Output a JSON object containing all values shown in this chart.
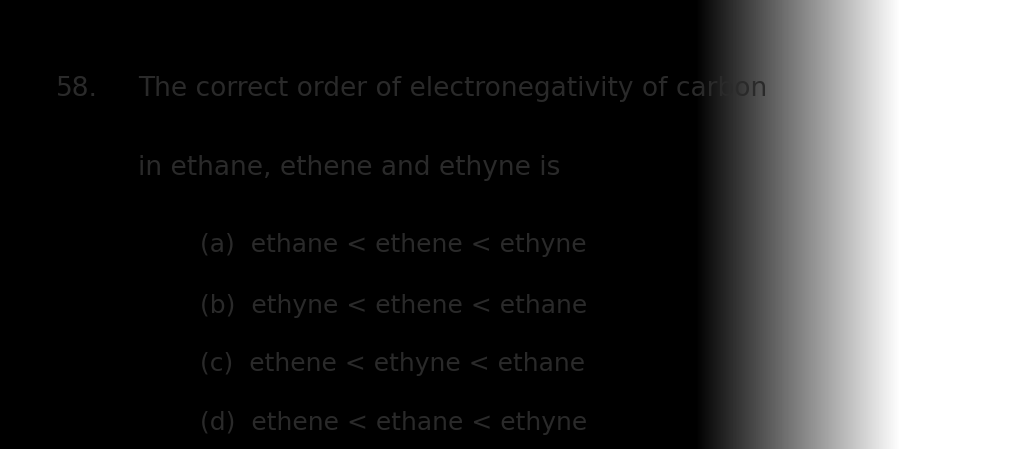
{
  "background_color_left": "#b8b8b8",
  "background_color_mid": "#c8c8c8",
  "background_color_right": "#d8d8d8",
  "question_number": "58.",
  "question_line1": "The correct order of electronegativity of carbon",
  "question_line2": "in ethane, ethene and ethyne is",
  "options": [
    "(a)  ethane < ethene < ethyne",
    "(b)  ethyne < ethene < ethane",
    "(c)  ethene < ethyne < ethane",
    "(d)  ethene < ethane < ethyne"
  ],
  "text_color": "#2a2a2a",
  "font_size_question": 19,
  "font_size_number": 19,
  "font_size_option": 18,
  "fig_width": 10.24,
  "fig_height": 4.49,
  "dpi": 100
}
